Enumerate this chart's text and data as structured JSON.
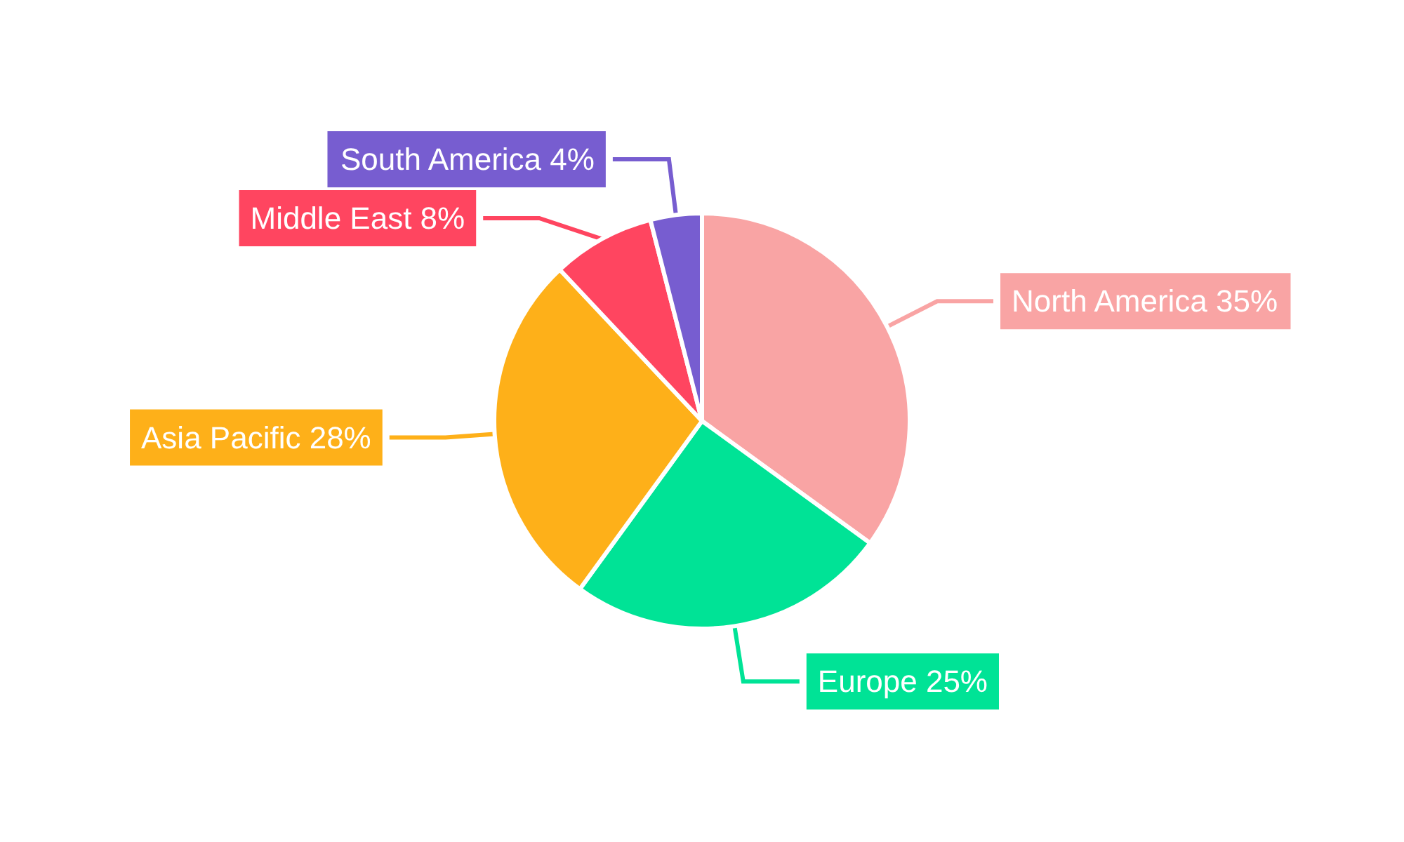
{
  "chart_data": {
    "type": "pie",
    "categories": [
      "North America",
      "Europe",
      "Asia Pacific",
      "Middle East",
      "South America"
    ],
    "values": [
      35,
      25,
      28,
      8,
      4
    ],
    "value_labels": [
      "35%",
      "25%",
      "28%",
      "8%",
      "4%"
    ],
    "colors": [
      "#f9a4a4",
      "#00e396",
      "#feb019",
      "#ff4560",
      "#775dd0"
    ],
    "legend": false
  }
}
